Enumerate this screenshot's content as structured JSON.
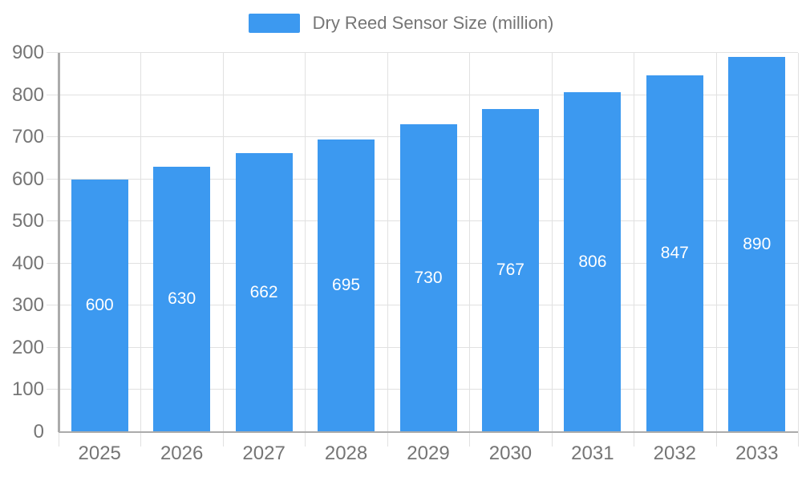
{
  "legend": {
    "label": "Dry Reed Sensor Size (million)"
  },
  "chart_data": {
    "type": "bar",
    "title": "Dry Reed Sensor Size (million)",
    "categories": [
      "2025",
      "2026",
      "2027",
      "2028",
      "2029",
      "2030",
      "2031",
      "2032",
      "2033"
    ],
    "values": [
      600,
      630,
      662,
      695,
      730,
      767,
      806,
      847,
      890
    ],
    "xlabel": "",
    "ylabel": "",
    "ylim": [
      0,
      900
    ],
    "ytick_step": 100,
    "grid": true,
    "legend_position": "top-center",
    "value_labels": "inside-center",
    "colors": {
      "bar": "#3C99F0",
      "grid_line": "#E1E1E1",
      "axis_line": "#ABABAB",
      "axis_text": "#757575",
      "value_text": "#FFFFFF",
      "background": "#FFFFFF"
    }
  }
}
